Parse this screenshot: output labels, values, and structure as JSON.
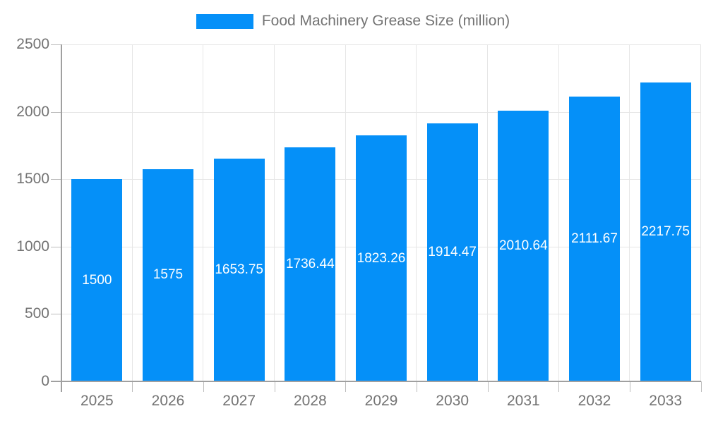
{
  "chart_data": {
    "type": "bar",
    "title": "Food Machinery Grease Size (million)",
    "legend_position": "top",
    "grid": true,
    "categories": [
      "2025",
      "2026",
      "2027",
      "2028",
      "2029",
      "2030",
      "2031",
      "2032",
      "2033"
    ],
    "values": [
      1500,
      1575,
      1653.75,
      1736.44,
      1823.26,
      1914.47,
      2010.64,
      2111.67,
      2217.75
    ],
    "value_labels": [
      "1500",
      "1575",
      "1653.75",
      "1736.44",
      "1823.26",
      "1914.47",
      "2010.64",
      "2111.67",
      "2217.75"
    ],
    "xlabel": "",
    "ylabel": "",
    "ylim": [
      0,
      2500
    ],
    "yticks": [
      0,
      500,
      1000,
      1500,
      2000,
      2500
    ],
    "ytick_labels": [
      "0",
      "500",
      "1000",
      "1500",
      "2000",
      "2500"
    ],
    "colors": {
      "bar": "#0590f8",
      "axis": "#a0a0a0",
      "tick": "#bcbcbc",
      "grid": "#e6e6e6",
      "text": "#737373",
      "value_label": "#ffffff"
    }
  }
}
